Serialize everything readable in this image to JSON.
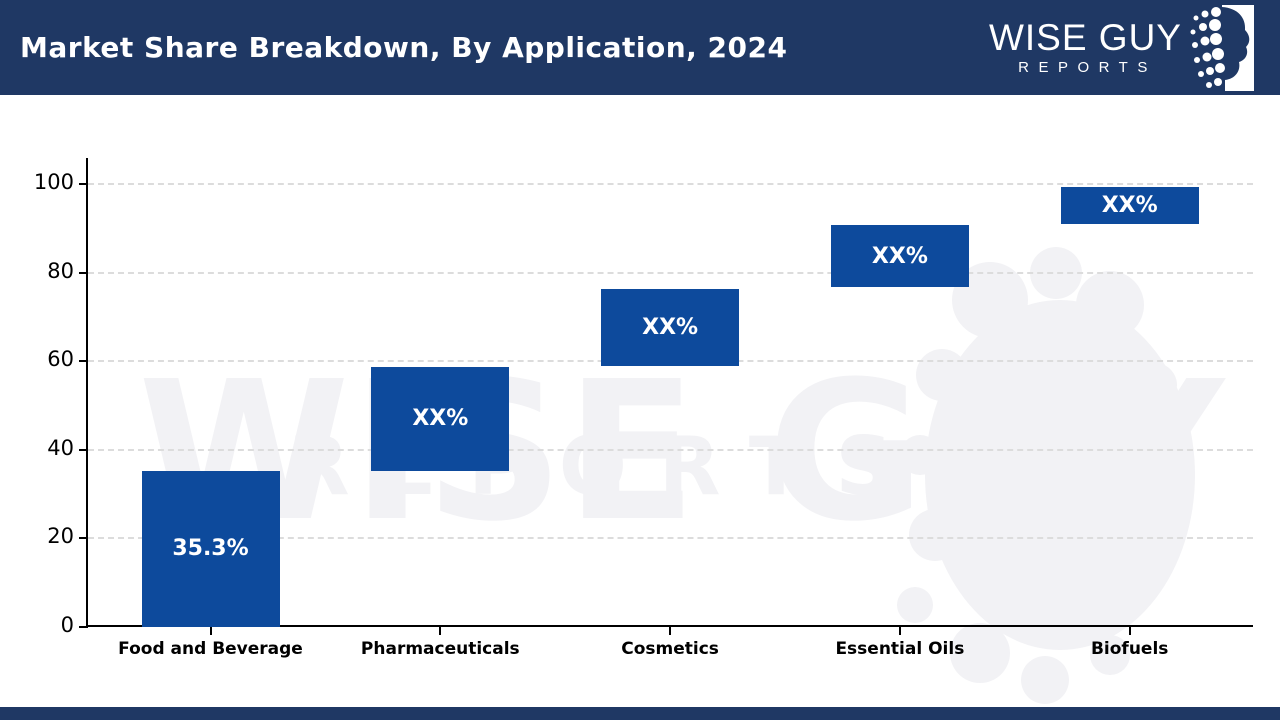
{
  "header": {
    "title": "Market Share Breakdown, By Application, 2024",
    "logo": {
      "line1": "WISE GUY",
      "line2": "REPORTS"
    }
  },
  "watermark": {
    "line1": "WISE GUY",
    "line2": "REPORTS"
  },
  "chart_data": {
    "type": "bar",
    "subtype": "floating-waterfall",
    "title": "Market Share Breakdown, By Application, 2024",
    "categories": [
      "Food and Beverage",
      "Pharmaceuticals",
      "Cosmetics",
      "Essential Oils",
      "Biofuels"
    ],
    "bars": [
      {
        "category": "Food and Beverage",
        "start": 0,
        "end": 35.3,
        "label": "35.3%"
      },
      {
        "category": "Pharmaceuticals",
        "start": 35.3,
        "end": 58.7,
        "label": "XX%"
      },
      {
        "category": "Cosmetics",
        "start": 58.9,
        "end": 76.3,
        "label": "XX%"
      },
      {
        "category": "Essential Oils",
        "start": 76.7,
        "end": 90.8,
        "label": "XX%"
      },
      {
        "category": "Biofuels",
        "start": 91.1,
        "end": 99.5,
        "label": "XX%"
      }
    ],
    "xlabel": "",
    "ylabel": "",
    "yticks": [
      0,
      20,
      40,
      60,
      80,
      100
    ],
    "ylim": [
      0,
      106
    ],
    "grid": "horizontal-dashed",
    "legend": "none",
    "bar_color": "#0d4a9c",
    "bar_label_color": "#ffffff"
  },
  "colors": {
    "header_bg": "#1f3864",
    "footer_bg": "#1f3864",
    "title_text": "#ffffff",
    "bar": "#0d4a9c",
    "grid": "#dcdcdc",
    "axis": "#000000",
    "watermark": "#f2f2f5"
  }
}
